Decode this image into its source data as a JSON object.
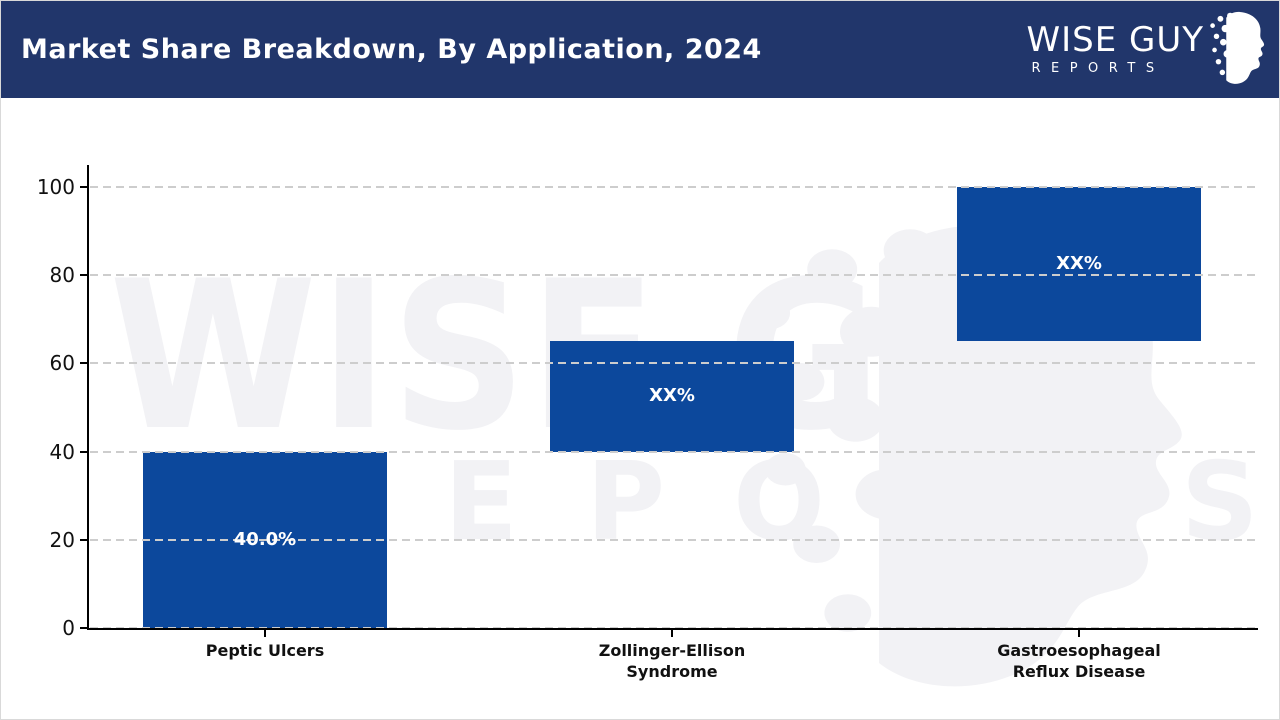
{
  "header": {
    "title": "Market Share Breakdown, By Application, 2024",
    "logo": {
      "line1": "WISE GUY",
      "line2": "REPORTS"
    }
  },
  "watermark": {
    "line1": "WISE GUY",
    "line2": "REPORTS"
  },
  "colors": {
    "header_bg": "#21366B",
    "bar": "#0C489C",
    "grid": "#CDCDCD",
    "axis": "#000000",
    "bar_label_text": "#FFFFFF",
    "watermark": "#F2F2F5"
  },
  "chart_data": {
    "type": "bar",
    "subtype": "floating-segments",
    "title": "Market Share Breakdown, By Application, 2024",
    "categories": [
      "Peptic Ulcers",
      "Zollinger-Ellison\nSyndrome",
      "Gastroesophageal\nReflux Disease"
    ],
    "segments": [
      {
        "category": "Peptic Ulcers",
        "from": 0,
        "to": 40,
        "label": "40.0%"
      },
      {
        "category": "Zollinger-Ellison Syndrome",
        "from": 40,
        "to": 65,
        "label": "XX%"
      },
      {
        "category": "Gastroesophageal Reflux Disease",
        "from": 65,
        "to": 100,
        "label": "XX%"
      }
    ],
    "ylim": [
      0,
      105
    ],
    "yticks": [
      0,
      20,
      40,
      60,
      80,
      100
    ],
    "xlabel": "",
    "ylabel": "",
    "grid": "horizontal-dashed",
    "legend": false
  }
}
